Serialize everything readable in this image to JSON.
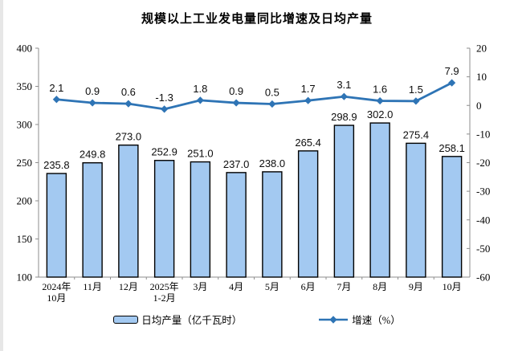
{
  "title": "规模以上工业发电量同比增速及日均产量",
  "legend": {
    "bar_label": "日均产量（亿千瓦时）",
    "line_label": "增速（%）"
  },
  "colors": {
    "bar_fill": "#a3c9f1",
    "bar_border": "#000000",
    "line": "#2e74b5",
    "axis": "#8e8e8e",
    "text": "#000000"
  },
  "chart_data": {
    "type": "bar",
    "title": "规模以上工业发电量同比增速及日均产量",
    "categories": [
      [
        "2024年",
        "10月"
      ],
      [
        "11月"
      ],
      [
        "12月"
      ],
      [
        "2025年",
        "1-2月"
      ],
      [
        "3月"
      ],
      [
        "4月"
      ],
      [
        "5月"
      ],
      [
        "6月"
      ],
      [
        "7月"
      ],
      [
        "8月"
      ],
      [
        "9月"
      ],
      [
        "10月"
      ]
    ],
    "series": [
      {
        "name": "日均产量（亿千瓦时）",
        "type": "bar",
        "axis": "left",
        "values": [
          235.8,
          249.8,
          273.0,
          252.9,
          251.0,
          237.0,
          238.0,
          265.4,
          298.9,
          302.0,
          275.4,
          258.1
        ]
      },
      {
        "name": "增速（%）",
        "type": "line",
        "axis": "right",
        "values": [
          2.1,
          0.9,
          0.6,
          -1.3,
          1.8,
          0.9,
          0.5,
          1.7,
          3.1,
          1.6,
          1.5,
          7.9
        ]
      }
    ],
    "left_axis": {
      "min": 100,
      "max": 400,
      "ticks": [
        400,
        350,
        300,
        250,
        200,
        150,
        100
      ]
    },
    "right_axis": {
      "min": -60,
      "max": 20,
      "ticks": [
        20,
        10,
        0,
        -10,
        -20,
        -30,
        -40,
        -50,
        -60
      ]
    },
    "grid": false,
    "legend_position": "bottom"
  }
}
